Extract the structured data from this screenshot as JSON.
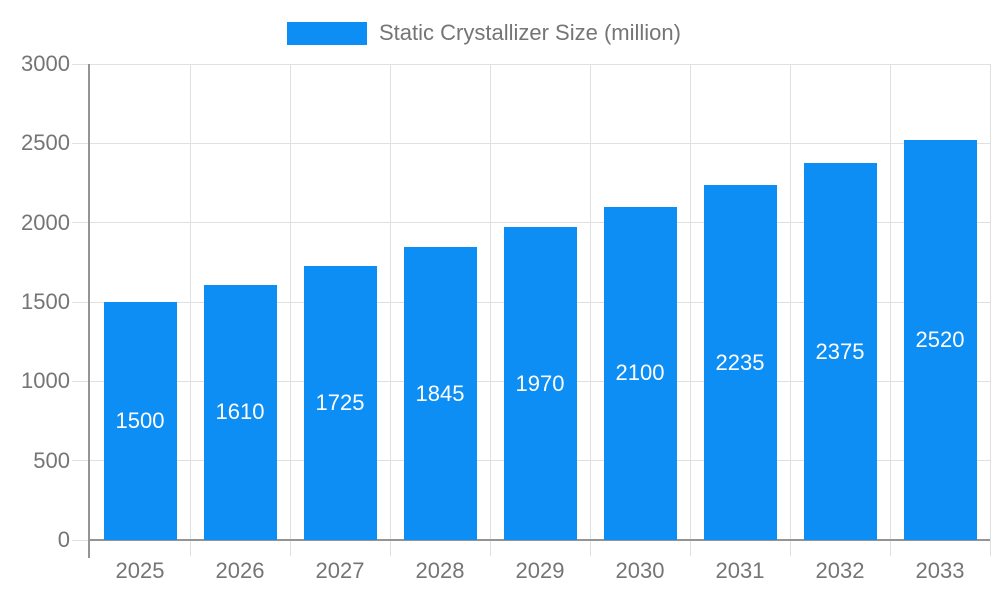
{
  "legend": {
    "label": "Static Crystallizer Size (million)"
  },
  "colors": {
    "bar": "#0d8ef5",
    "grid": "#e0e0e0",
    "axis": "#949494",
    "axis_text": "#757575",
    "value_text": "#ffffff",
    "background": "#ffffff"
  },
  "chart_data": {
    "type": "bar",
    "categories": [
      "2025",
      "2026",
      "2027",
      "2028",
      "2029",
      "2030",
      "2031",
      "2032",
      "2033"
    ],
    "values": [
      1500,
      1610,
      1725,
      1845,
      1970,
      2100,
      2235,
      2375,
      2520
    ],
    "series_name": "Static Crystallizer Size (million)",
    "xlabel": "",
    "ylabel": "",
    "ylim": [
      0,
      3000
    ],
    "yticks": [
      0,
      500,
      1000,
      1500,
      2000,
      2500,
      3000
    ],
    "grid": true,
    "legend_position": "top-center",
    "value_label_position": "inside-center"
  }
}
